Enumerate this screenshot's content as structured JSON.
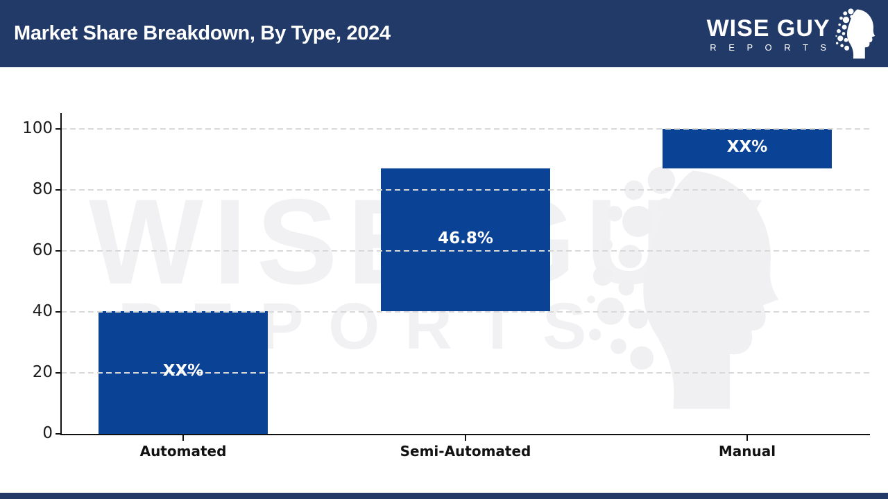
{
  "header": {
    "title": "Market Share Breakdown, By Type, 2024",
    "logo": {
      "name": "Wise Guy Reports",
      "line1": "WISE GUY",
      "line2": "R E P O R T S"
    }
  },
  "watermark": {
    "line1": "WISE GUY",
    "line2": "REPORTS"
  },
  "chart_data": {
    "type": "bar",
    "subtype": "floating-waterfall",
    "title": "Market Share Breakdown, By Type, 2024",
    "categories": [
      "Automated",
      "Semi-Automated",
      "Manual"
    ],
    "segments": [
      {
        "category": "Automated",
        "start": 0,
        "end": 40.3,
        "label": "XX%"
      },
      {
        "category": "Semi-Automated",
        "start": 40.3,
        "end": 87.1,
        "label": "46.8%"
      },
      {
        "category": "Manual",
        "start": 87.1,
        "end": 100,
        "label": "XX%"
      }
    ],
    "known_values": {
      "Semi-Automated": 46.8
    },
    "ylim": [
      0,
      100
    ],
    "yticks": [
      0,
      20,
      40,
      60,
      80,
      100
    ],
    "xlabel": "",
    "ylabel": "",
    "grid": "horizontal-dashed",
    "legend": "none",
    "bar_color": "#0a4296",
    "bar_label_color": "#ffffff"
  },
  "colors": {
    "header_bg": "#223a68",
    "footer_bg": "#223a68",
    "bar": "#0a4296",
    "gridline": "#d9d9d9",
    "axis": "#1a1a1a",
    "watermark": "#f1f1f4",
    "background": "#ffffff"
  }
}
